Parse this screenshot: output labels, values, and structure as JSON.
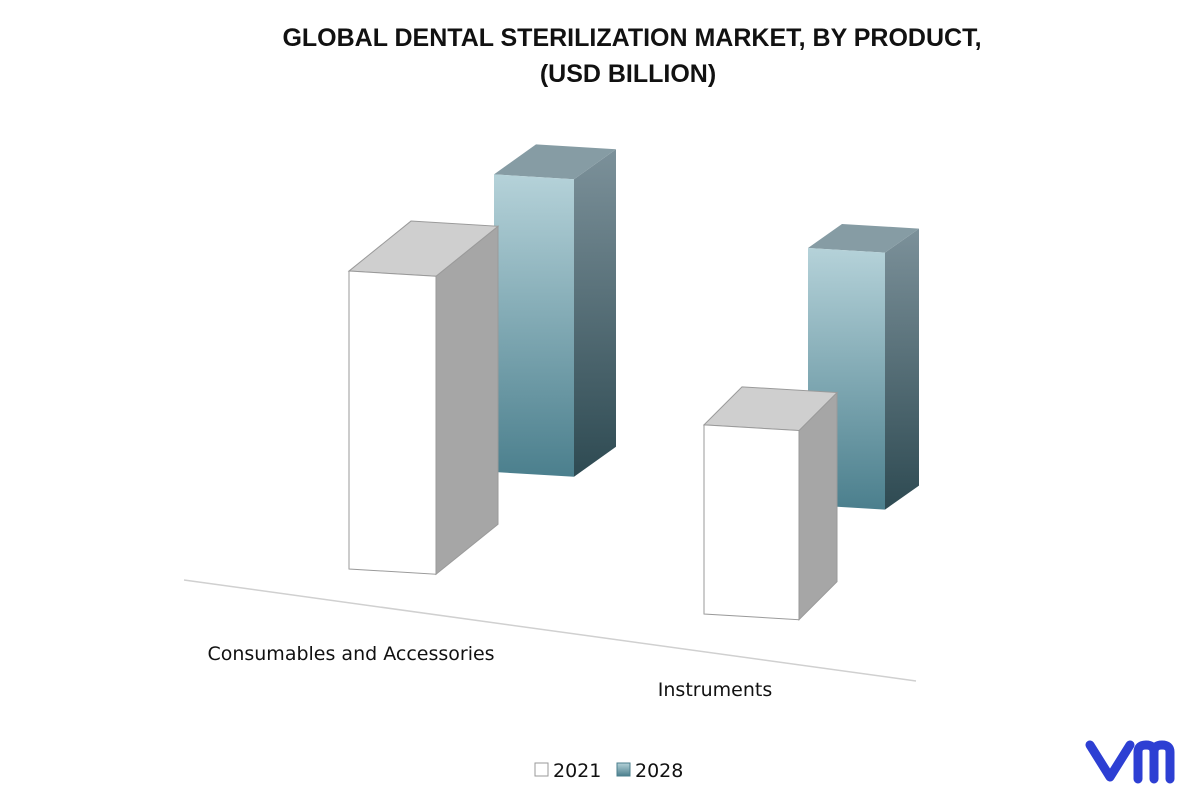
{
  "chart_data": {
    "type": "bar",
    "title_lines": [
      "GLOBAL DENTAL STERILIZATION MARKET, BY PRODUCT,",
      "(USD BILLION)"
    ],
    "categories": [
      "Consumables and Accessories",
      "Instruments"
    ],
    "series": [
      {
        "name": "2021",
        "values": [
          2.95,
          1.95
        ]
      },
      {
        "name": "2028",
        "values": [
          3.1,
          2.65
        ]
      }
    ],
    "ylim": [
      0,
      3.5
    ],
    "grid": false,
    "legend_position": "bottom",
    "colors": {
      "2021_front": "#ffffff",
      "2021_side": "#a6a6a6",
      "2021_top": "#cfcfcf",
      "2028_front_top": "#b5d2d9",
      "2028_front_bottom": "#4b7f8d",
      "2028_side_top": "#7c919a",
      "2028_side_bottom": "#2e4a52",
      "2028_top": "#869ca4",
      "outline": "#9a9a9a",
      "floor": "#d0d0d0"
    }
  },
  "logo": {
    "text": "vm",
    "color": "#2d3fd3"
  }
}
